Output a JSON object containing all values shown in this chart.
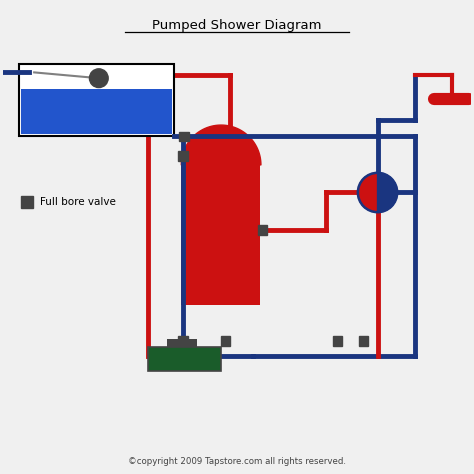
{
  "title": "Pumped Shower Diagram",
  "copyright": "©copyright 2009 Tapstore.com all rights reserved.",
  "bg_color": "#f0f0f0",
  "red": "#cc1111",
  "blue": "#1a3580",
  "dark_gray": "#444444",
  "green": "#1a5c2a",
  "tank_fill": "#2255cc",
  "line_width": 3.5,
  "fig_width": 4.74,
  "fig_height": 4.74
}
